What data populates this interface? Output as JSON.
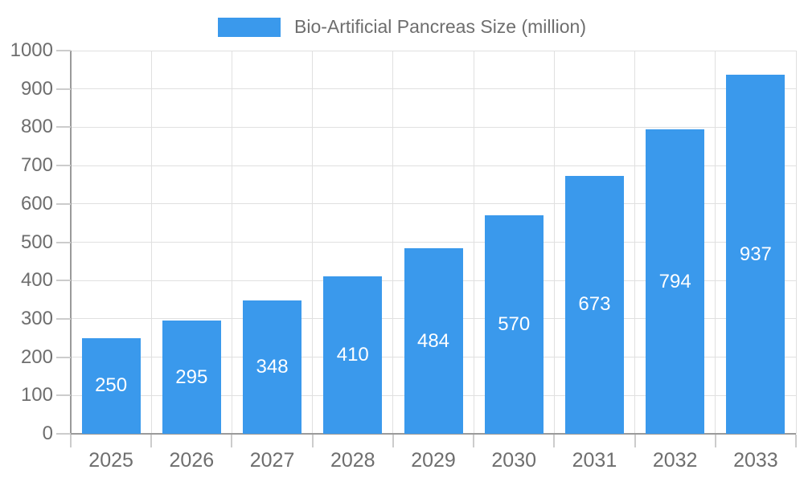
{
  "chart_data": {
    "type": "bar",
    "title": "",
    "legend": "Bio-Artificial Pancreas Size (million)",
    "legend_position": "top",
    "categories": [
      "2025",
      "2026",
      "2027",
      "2028",
      "2029",
      "2030",
      "2031",
      "2032",
      "2033"
    ],
    "series": [
      {
        "name": "Bio-Artificial Pancreas Size (million)",
        "values": [
          250,
          295,
          348,
          410,
          484,
          570,
          673,
          794,
          937
        ]
      }
    ],
    "xlabel": "",
    "ylabel": "",
    "ylim": [
      0,
      1000
    ],
    "yticks": [
      0,
      100,
      200,
      300,
      400,
      500,
      600,
      700,
      800,
      900,
      1000
    ],
    "grid": true,
    "value_labels": "centered-in-bar",
    "colors": {
      "bar": "#3A99EC",
      "value_label": "#FFFFFF",
      "axis_text": "#6E6E6E",
      "gridline": "#E0E0E0",
      "axis_line": "#9A9A9A",
      "tick": "#CCCCCC",
      "background": "#FFFFFF"
    }
  }
}
